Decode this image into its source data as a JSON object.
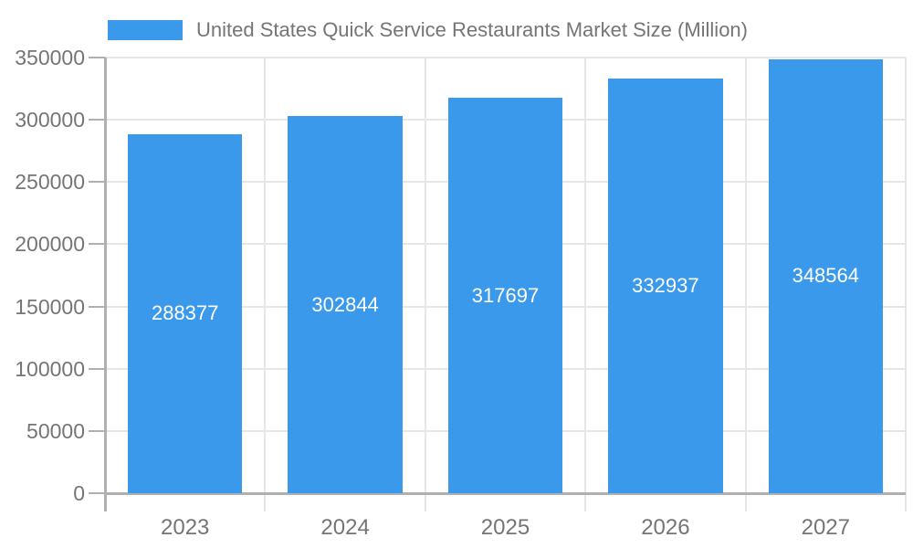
{
  "legend": {
    "label": "United States Quick Service Restaurants Market Size (Million)"
  },
  "chart_data": {
    "type": "bar",
    "title": "United States Quick Service Restaurants Market Size (Million)",
    "categories": [
      "2023",
      "2024",
      "2025",
      "2026",
      "2027"
    ],
    "values": [
      288377,
      302844,
      317697,
      332937,
      348564
    ],
    "value_labels": [
      "288377",
      "302844",
      "317697",
      "332937",
      "348564"
    ],
    "xlabel": "",
    "ylabel": "",
    "ylim": [
      0,
      350000
    ],
    "ytick_step": 50000,
    "ytick_labels": [
      "0",
      "50000",
      "100000",
      "150000",
      "200000",
      "250000",
      "300000",
      "350000"
    ],
    "grid": true,
    "legend_position": "top-left",
    "series_name": "United States Quick Service Restaurants Market Size (Million)",
    "colors": {
      "bar": "#3b99ec",
      "axis": "#b0b0b0",
      "gridline": "#e6e6e6",
      "tick_label": "#757575",
      "value_label": "#ffffff",
      "background": "#ffffff"
    }
  }
}
